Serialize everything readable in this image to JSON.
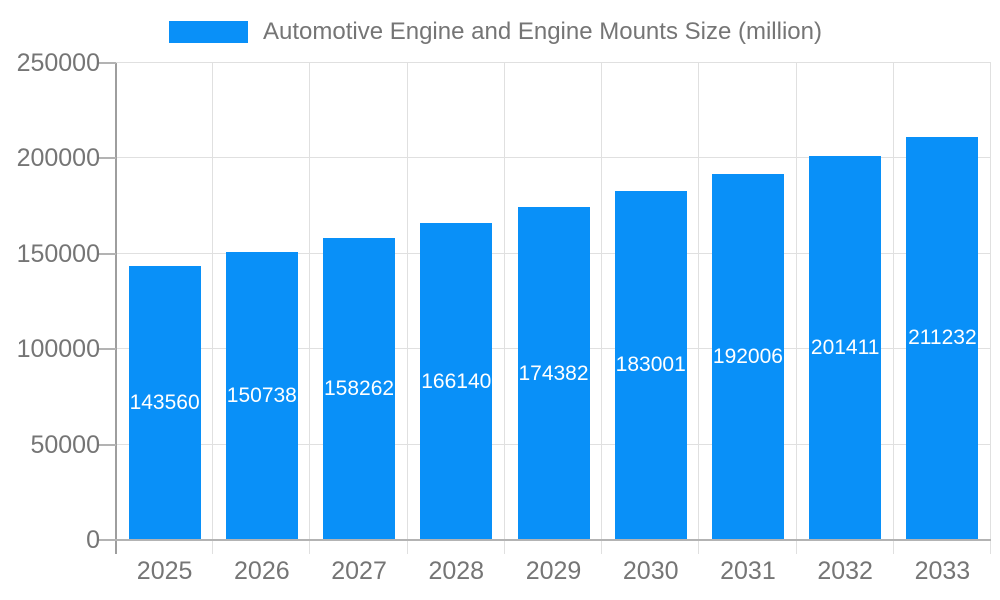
{
  "legend": {
    "title": "Automotive Engine and Engine Mounts Size (million)"
  },
  "chart_data": {
    "type": "bar",
    "title": "Automotive Engine and Engine Mounts Size (million)",
    "series_name": "Automotive Engine and Engine Mounts Size (million)",
    "categories": [
      "2025",
      "2026",
      "2027",
      "2028",
      "2029",
      "2030",
      "2031",
      "2032",
      "2033"
    ],
    "values": [
      143560,
      150738,
      158262,
      166140,
      174382,
      183001,
      192006,
      201411,
      211232
    ],
    "bar_labels": [
      "143560",
      "150738",
      "158262",
      "166140",
      "174382",
      "183001",
      "192006",
      "201411",
      "211232"
    ],
    "xlabel": "",
    "ylabel": "",
    "ylim": [
      0,
      250000
    ],
    "y_ticks": [
      0,
      50000,
      100000,
      150000,
      200000,
      250000
    ],
    "y_tick_labels": [
      "0",
      "50000",
      "100000",
      "150000",
      "200000",
      "250000"
    ],
    "grid": true,
    "legend_position": "top",
    "colors": {
      "bar": "#0990F8",
      "bar_label_text": "#ffffff",
      "axis_text": "#757575",
      "gridline": "#e0e0e0",
      "x_axis_line": "#b3b3b3",
      "y_axis_line": "#9e9e9e",
      "background": "#ffffff"
    }
  }
}
